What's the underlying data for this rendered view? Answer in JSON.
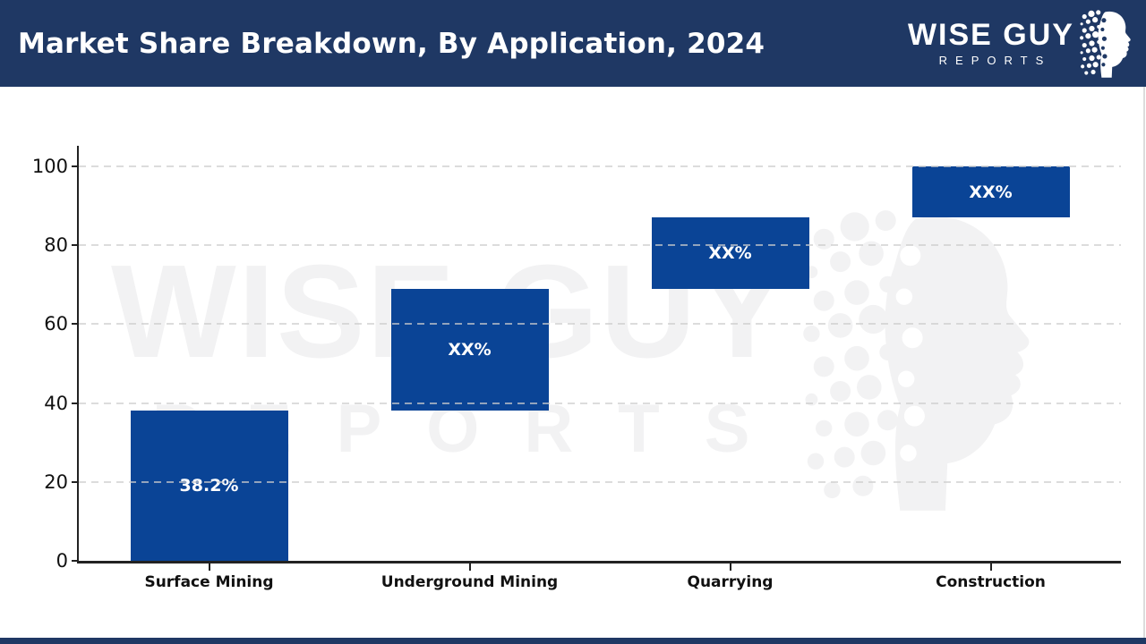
{
  "header": {
    "title": "Market Share Breakdown, By Application, 2024",
    "logo": {
      "name": "WISE GUY",
      "subtitle": "REPORTS",
      "head_icon": "dotted-head-profile-icon"
    }
  },
  "watermark": {
    "title": "WISE GUY",
    "subtitle": "REPORTS",
    "head_icon": "dotted-head-profile-icon"
  },
  "colors": {
    "header_bg": "#1f3864",
    "footer_bg": "#1f3864",
    "background": "#ffffff",
    "bar_fill": "#0a4496",
    "bar_label": "#ffffff",
    "axis": "#222222",
    "tick_label": "#111111",
    "category_label": "#111111",
    "grid": "rgba(205,205,205,0.7)",
    "watermark": "#f2f2f3",
    "edge_line": "#dcdcdc"
  },
  "chart_data": {
    "type": "bar",
    "subtype": "floating-cumulative-waterfall",
    "title": "Market Share Breakdown, By Application, 2024",
    "categories": [
      "Surface Mining",
      "Underground Mining",
      "Quarrying",
      "Construction"
    ],
    "series": [
      {
        "name": "Market Share",
        "segments": [
          {
            "category": "Surface Mining",
            "start": 0,
            "end": 38.2,
            "label": "38.2%"
          },
          {
            "category": "Underground Mining",
            "start": 38.2,
            "end": 68.9,
            "label": "XX%"
          },
          {
            "category": "Quarrying",
            "start": 68.9,
            "end": 87.0,
            "label": "XX%"
          },
          {
            "category": "Construction",
            "start": 87.0,
            "end": 100.0,
            "label": "XX%"
          }
        ]
      }
    ],
    "xlabel": "",
    "ylabel": "",
    "ylim": [
      0,
      103.5
    ],
    "yticks": [
      0,
      20,
      40,
      60,
      80,
      100
    ],
    "grid": "horizontal-dashed-above-bars",
    "legend": "none"
  }
}
